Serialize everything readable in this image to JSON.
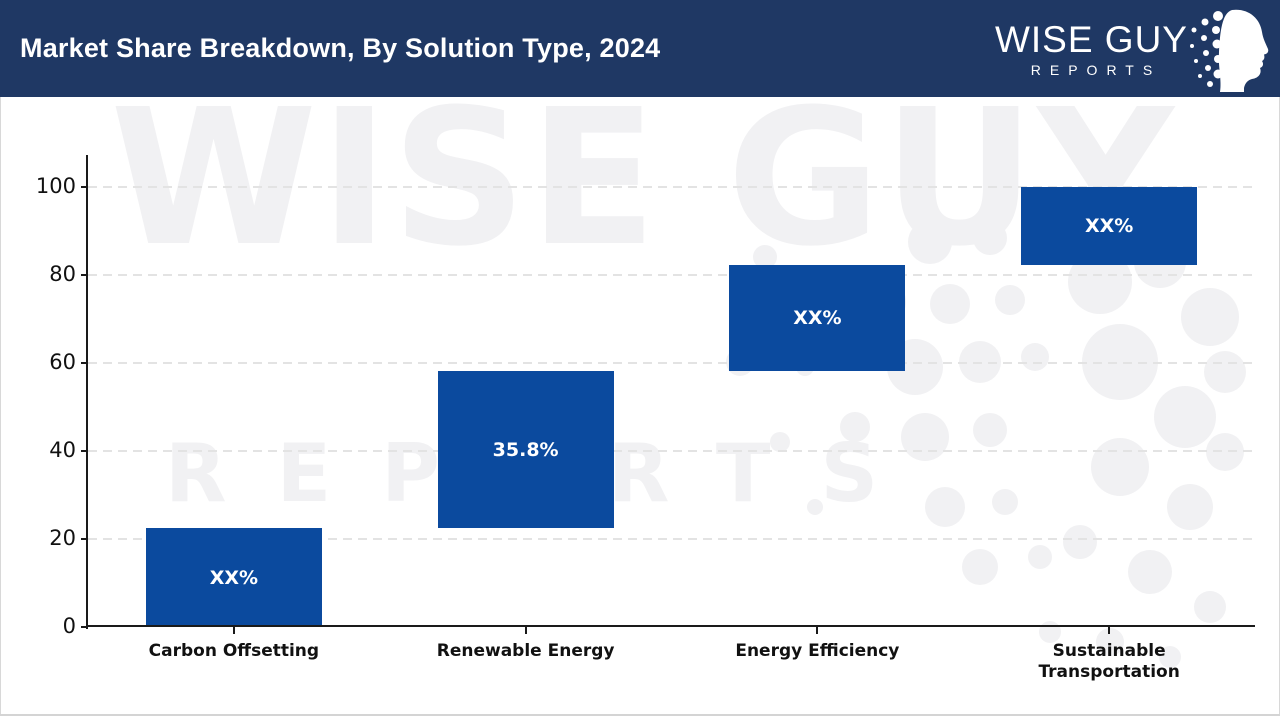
{
  "header": {
    "title": "Market Share Breakdown, By Solution Type, 2024",
    "logo": {
      "line1": "WISE GUY",
      "line2": "REPORTS"
    }
  },
  "watermark": {
    "line1": "WISE GUY",
    "line2": "REPORTS"
  },
  "colors": {
    "header_bg": "#1f3864",
    "bar": "#0b4a9e",
    "grid": "#e3e3e3",
    "axis": "#1a1a1a",
    "watermark": "#f1f1f3"
  },
  "chart_data": {
    "type": "bar",
    "subtype": "waterfall",
    "title": "Market Share Breakdown, By Solution Type, 2024",
    "categories": [
      "Carbon Offsetting",
      "Renewable Energy",
      "Energy Efficiency",
      "Sustainable\nTransportation"
    ],
    "bars": [
      {
        "category": "Carbon Offsetting",
        "start": 0,
        "end": 22.4,
        "value": 22.4,
        "label": "XX%"
      },
      {
        "category": "Renewable Energy",
        "start": 22.4,
        "end": 58.2,
        "value": 35.8,
        "label": "35.8%"
      },
      {
        "category": "Energy Efficiency",
        "start": 58.2,
        "end": 82.3,
        "value": 24.1,
        "label": "XX%"
      },
      {
        "category": "Sustainable Transportation",
        "start": 82.3,
        "end": 100,
        "value": 17.7,
        "label": "XX%"
      }
    ],
    "xlabel": "",
    "ylabel": "",
    "ylim": [
      0,
      100
    ],
    "yticks": [
      0,
      20,
      40,
      60,
      80,
      100
    ],
    "grid": "horizontal-dashed",
    "legend": "none",
    "bar_color": "#0b4a9e",
    "bar_label_color": "#ffffff"
  }
}
